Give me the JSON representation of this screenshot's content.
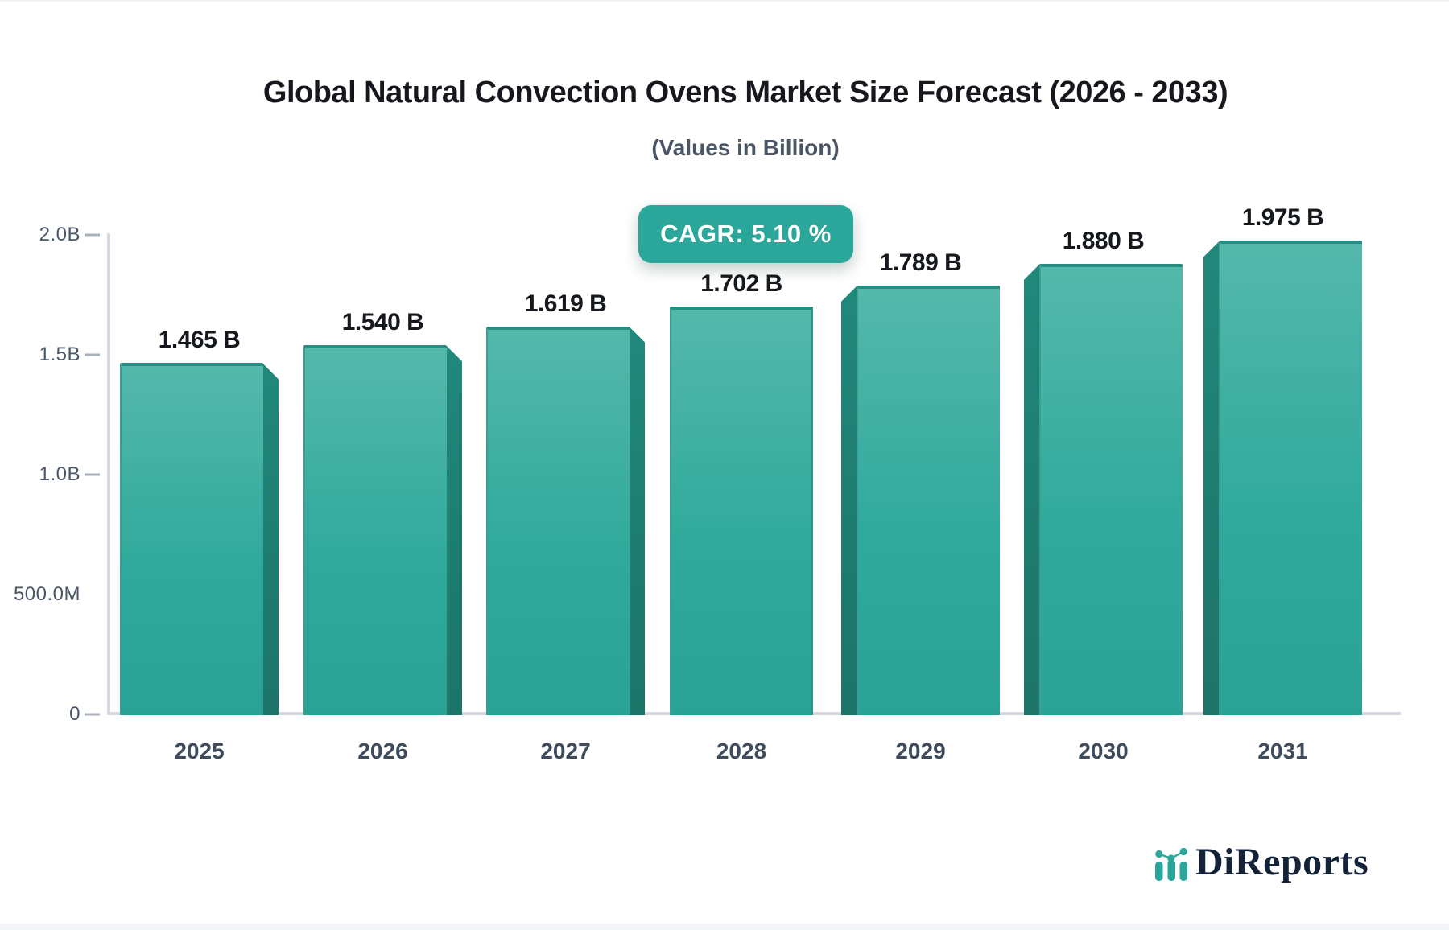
{
  "title": "Global Natural Convection Ovens Market Size Forecast (2026 - 2033)",
  "subtitle": "(Values in Billion)",
  "badge": {
    "label": "CAGR: 5.10 %",
    "bg_color": "#2aa79a",
    "text_color": "#ffffff"
  },
  "chart_data": {
    "type": "bar",
    "categories": [
      "2025",
      "2026",
      "2027",
      "2028",
      "2029",
      "2030",
      "2031"
    ],
    "values": [
      1.465,
      1.54,
      1.619,
      1.702,
      1.789,
      1.88,
      1.975
    ],
    "value_labels": [
      "1.465 B",
      "1.540 B",
      "1.619 B",
      "1.702 B",
      "1.789 B",
      "1.880 B",
      "1.975 B"
    ],
    "title": "Global Natural Convection Ovens Market Size Forecast (2026 - 2033)",
    "subtitle": "(Values in Billion)",
    "xlabel": "",
    "ylabel": "",
    "ylim": [
      0,
      2.0
    ],
    "ytick_labels": [
      "2.0B",
      "1.5B",
      "1.0B",
      "500.0M",
      "0"
    ],
    "ytick_values": [
      2.0,
      1.5,
      1.0,
      0.5,
      0
    ],
    "ytick_has_dash": [
      true,
      true,
      true,
      false,
      true
    ],
    "grid": false,
    "legend": false,
    "bar_color": "#2ea99b",
    "bar_side_color": "#1e7c70",
    "bar_top_edge_color": "#2a8d83",
    "effect_3d": true
  },
  "logo": {
    "text": "DiReports",
    "icon": "mini-bar-chart-icon",
    "accent_color": "#2aa79a",
    "text_color": "#142338"
  }
}
